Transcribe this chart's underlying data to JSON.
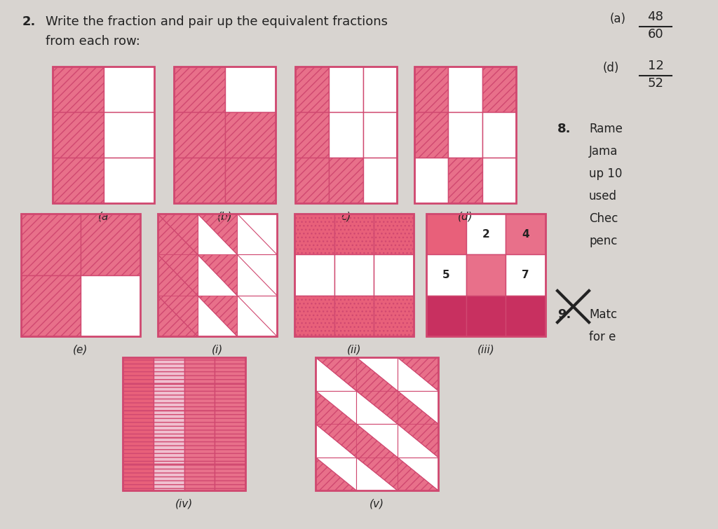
{
  "bg_color": "#d8d4d0",
  "paper_color": "#e8e4e0",
  "pink_hatch": "#e8708a",
  "pink_solid": "#e8607a",
  "pink_dark": "#c83060",
  "pink_bright": "#f080a0",
  "grid_color": "#d04870",
  "white": "#ffffff",
  "text_color": "#222222",
  "title_num": "2.",
  "title_text": "Write the fraction and pair up the equivalent fractions",
  "title_text2": "from each row:",
  "labels_row1": [
    "(a",
    "(b)",
    "c)",
    "(d)"
  ],
  "labels_row2": [
    "(e)",
    "(i)",
    "(ii)",
    "(iii)"
  ],
  "labels_row3": [
    "(iv)",
    "(v)"
  ],
  "side_a_num": "48",
  "side_a_den": "60",
  "side_d_num": "12",
  "side_d_den": "52",
  "side_8_lines": [
    "Rame",
    "Jama",
    "up 10",
    "used",
    "Chec",
    "penc"
  ],
  "side_9_lines": [
    "Matc",
    "for e"
  ]
}
